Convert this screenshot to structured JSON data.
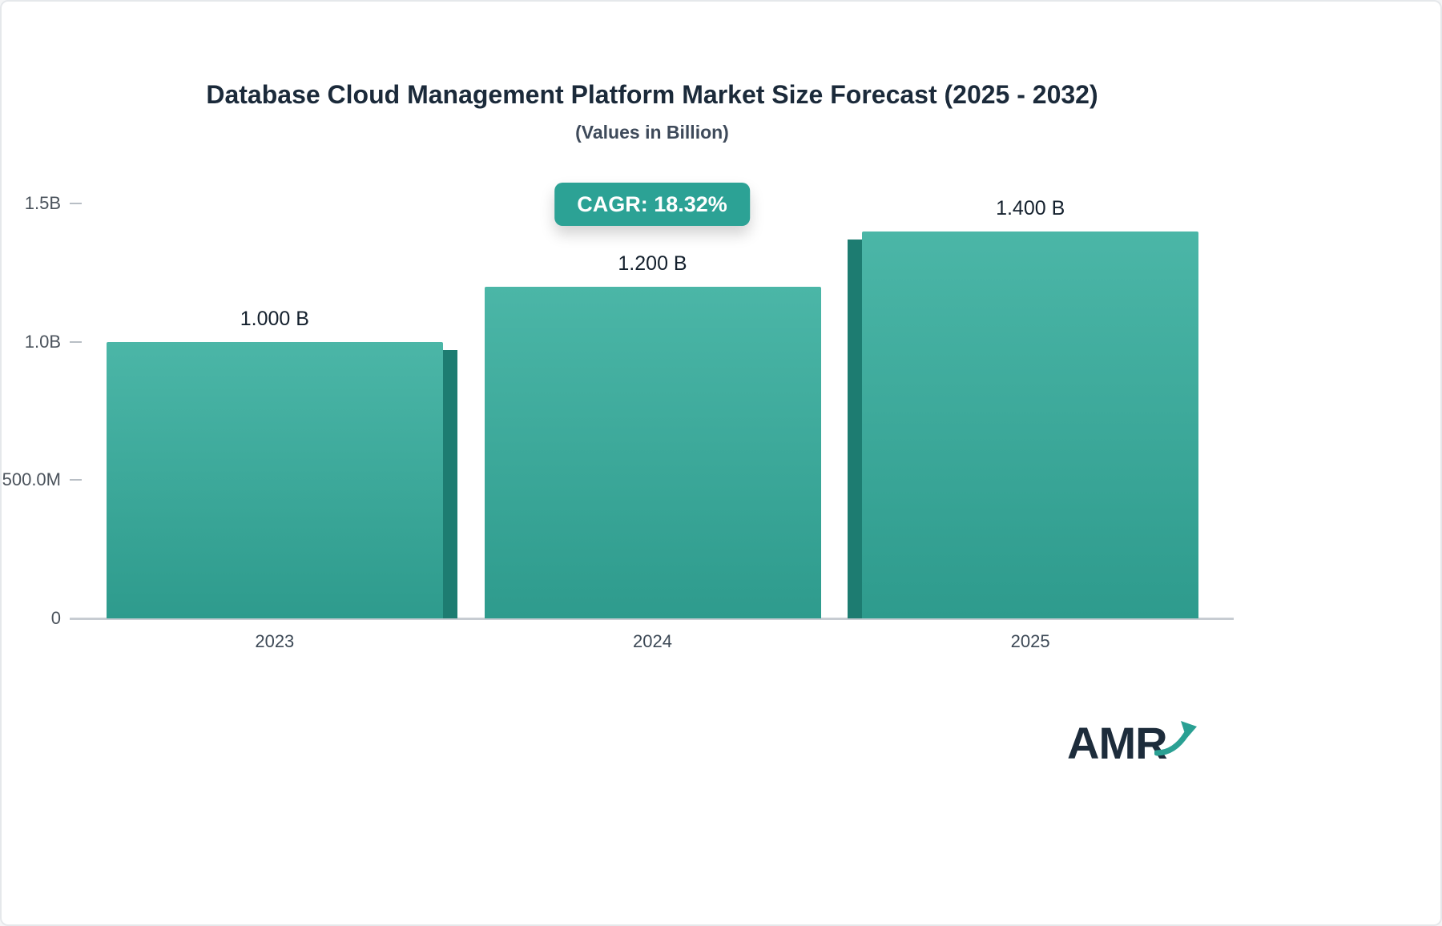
{
  "page": {
    "title": "Database Cloud Management Platform Market Size Forecast (2025 - 2032)",
    "subtitle": "(Values in Billion)"
  },
  "badge": {
    "label": "CAGR: 18.32%"
  },
  "logo": {
    "text": "AMR"
  },
  "colors": {
    "bar_top": "#4bb6a7",
    "bar_bottom": "#2e9b8d",
    "bar_side": "#1d7c71",
    "badge_bg": "#2ca295",
    "logo_arrow": "#2aa093",
    "title_text": "#1b2a3a",
    "axis_text": "#4b535c"
  },
  "chart_data": {
    "type": "bar",
    "title": "Database Cloud Management Platform Market Size Forecast (2025 - 2032)",
    "subtitle": "(Values in Billion)",
    "unit": "Billion",
    "categories": [
      "2023",
      "2024",
      "2025"
    ],
    "values": [
      1.0,
      1.2,
      1.4
    ],
    "value_labels": [
      "1.000 B",
      "1.200 B",
      "1.400 B"
    ],
    "annotation": "CAGR: 18.32%",
    "ylim": [
      0,
      1.5
    ],
    "yticks": [
      {
        "value": 0,
        "label": "0"
      },
      {
        "value": 0.5,
        "label": "500.0M"
      },
      {
        "value": 1.0,
        "label": "1.0B"
      },
      {
        "value": 1.5,
        "label": "1.5B"
      }
    ],
    "grid": false,
    "legend": false,
    "bar_sides": [
      "right",
      "none",
      "left"
    ]
  }
}
